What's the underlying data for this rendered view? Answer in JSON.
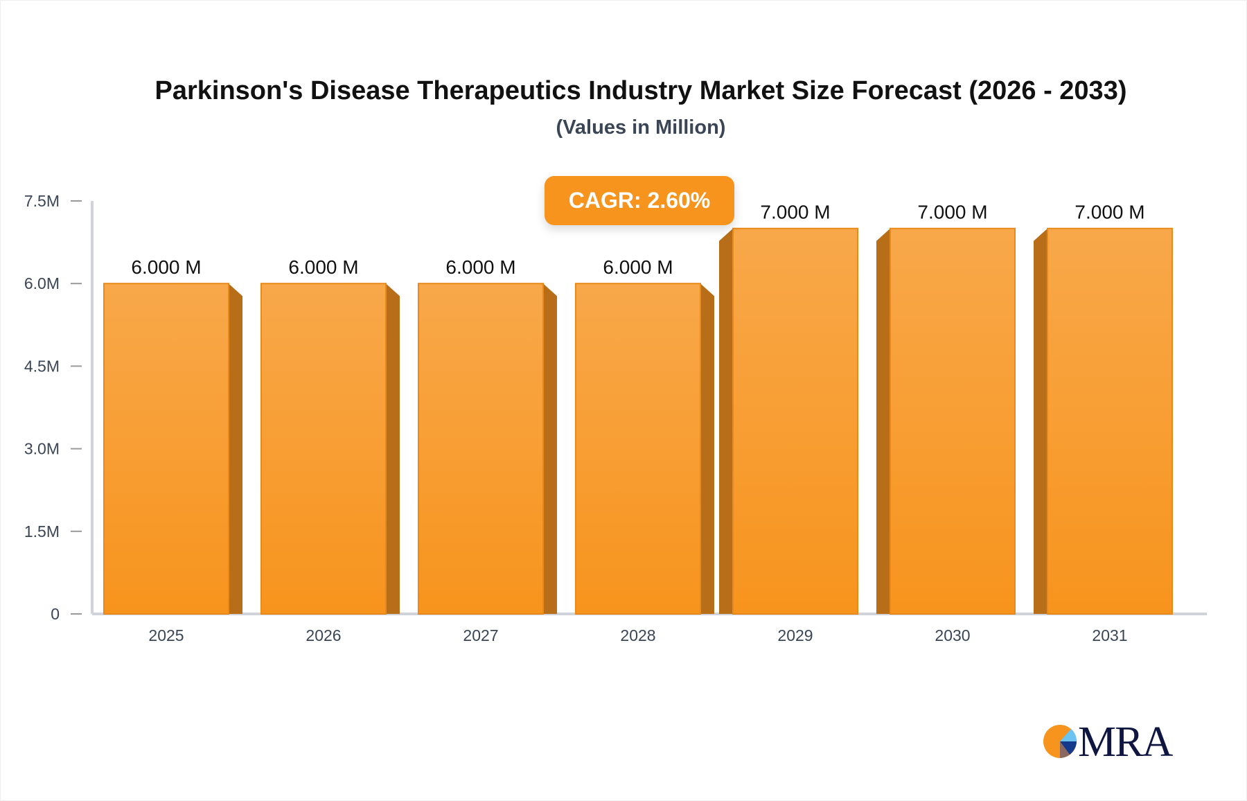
{
  "chart_data": {
    "type": "bar",
    "title": "Parkinson's Disease Therapeutics Industry Market Size Forecast (2026 - 2033)",
    "subtitle": "(Values in Million)",
    "categories": [
      "2025",
      "2026",
      "2027",
      "2028",
      "2029",
      "2030",
      "2031"
    ],
    "values": [
      6.0,
      6.0,
      6.0,
      6.0,
      7.0,
      7.0,
      7.0
    ],
    "data_labels": [
      "6.000 M",
      "6.000 M",
      "6.000 M",
      "6.000 M",
      "7.000 M",
      "7.000 M",
      "7.000 M"
    ],
    "y_ticks": [
      0,
      1.5,
      3.0,
      4.5,
      6.0,
      7.5
    ],
    "y_tick_labels": [
      "0",
      "1.5M",
      "3.0M",
      "4.5M",
      "6.0M",
      "7.5M"
    ],
    "ylim": [
      0,
      7.5
    ],
    "xlabel": "",
    "ylabel": "",
    "grid": false,
    "annotation": "CAGR: 2.60%",
    "colors": {
      "bar": "#f7941d",
      "bar_top": "#f8a84a",
      "bar_side": "#b86e18",
      "axis": "#d0d3da"
    }
  },
  "logo": {
    "text": "MRA"
  }
}
